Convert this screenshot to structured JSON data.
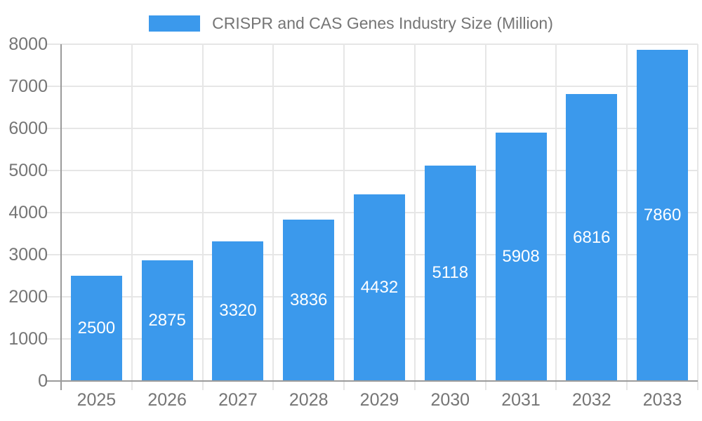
{
  "chart_data": {
    "type": "bar",
    "title": "CRISPR and CAS Genes Industry Size (Million)",
    "categories": [
      "2025",
      "2026",
      "2027",
      "2028",
      "2029",
      "2030",
      "2031",
      "2032",
      "2033"
    ],
    "values": [
      2500,
      2875,
      3320,
      3836,
      4432,
      5118,
      5908,
      6816,
      7860
    ],
    "bar_value_labels": [
      "2500",
      "2875",
      "3320",
      "3836",
      "4432",
      "5118",
      "5908",
      "6816",
      "7860"
    ],
    "ylim": [
      0,
      8000
    ],
    "yticks": [
      0,
      1000,
      2000,
      3000,
      4000,
      5000,
      6000,
      7000,
      8000
    ],
    "ytick_labels": [
      "0",
      "1000",
      "2000",
      "3000",
      "4000",
      "5000",
      "6000",
      "7000",
      "8000"
    ],
    "xlabel": "",
    "ylabel": "",
    "grid": "both",
    "bar_label_position": "inside-center",
    "legend_position": "top-center",
    "colors": {
      "bar": "#3B99EC",
      "bar_label": "#FFFFFF",
      "tick_text": "#757575",
      "title_text": "#757575",
      "axis_line": "#9B9B9B",
      "grid_line": "#E6E6E6",
      "background": "#FFFFFF"
    }
  }
}
